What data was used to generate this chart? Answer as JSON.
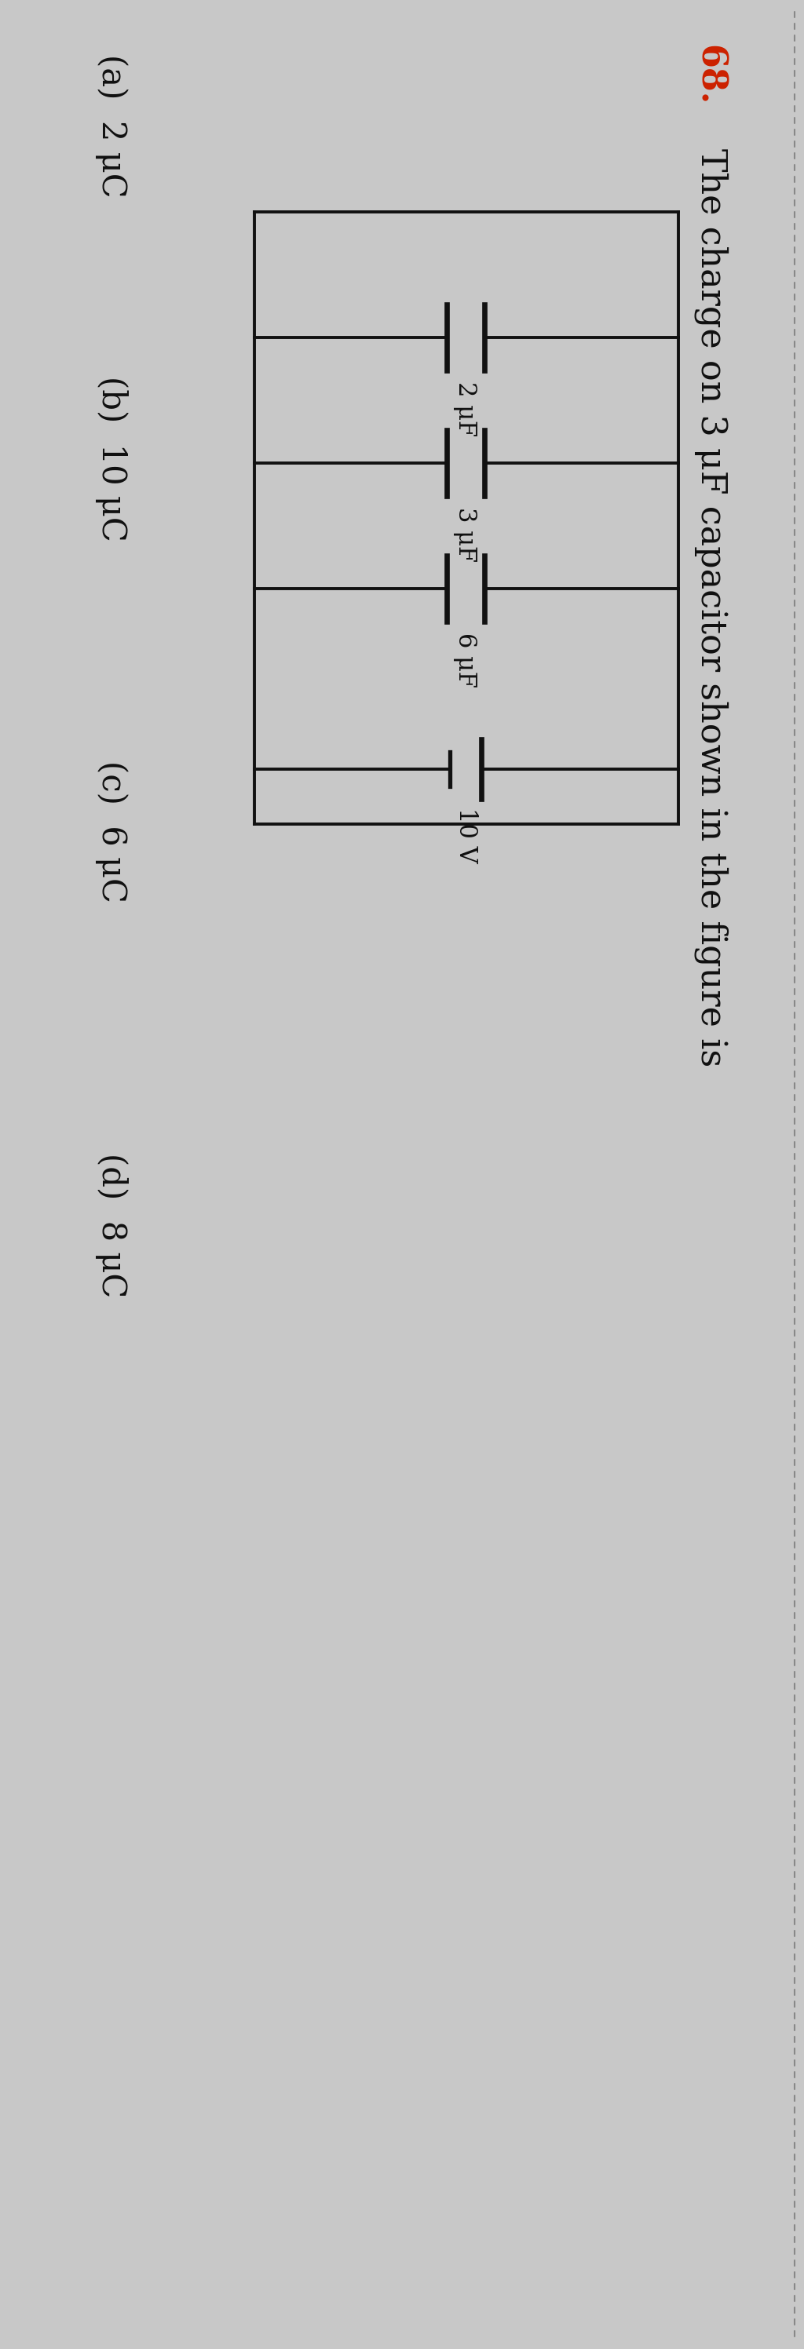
{
  "background_color": "#c8c8c8",
  "question_number": "68.",
  "question_number_color": "#cc2200",
  "question_text": "The charge on 3 μF capacitor shown in the figure is",
  "question_fontsize": 32,
  "cap1_label": "2 μF",
  "cap2_label": "3 μF",
  "cap3_label": "6 μF",
  "battery_label": "10 V",
  "line_color": "#111111",
  "line_width": 2.8,
  "options_a": "(a)  2 μC",
  "options_b": "(b)  10 μC",
  "options_c": "(c)  6 μC",
  "options_d": "(d)  8 μC",
  "options_fontsize": 30,
  "dotted_color": "#888888",
  "label_fontsize": 22
}
